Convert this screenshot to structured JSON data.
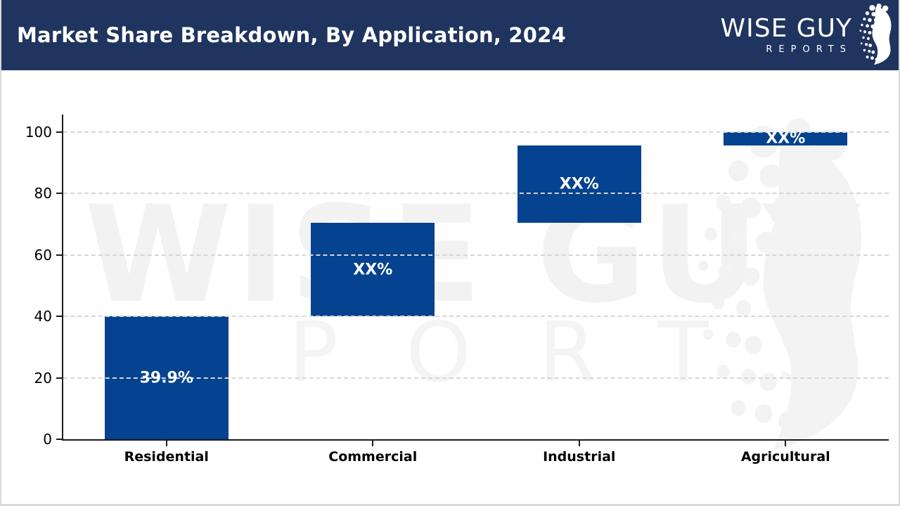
{
  "header": {
    "title": "Market Share Breakdown, By Application, 2024",
    "logo": {
      "brand": "WISE GUY",
      "sub": "REPORTS"
    }
  },
  "watermark": {
    "brand": "WISE GUY",
    "sub": "PORTS"
  },
  "colors": {
    "header_bg": "#1f345f",
    "bar": "#05428f",
    "bar_label_text": "#ffffff",
    "grid": "#d6d6d6",
    "axis": "#1a1a1a",
    "title_text": "#ffffff",
    "watermark": "#f2f2f2"
  },
  "chart_data": {
    "type": "bar",
    "subtype": "floating-waterfall",
    "title": "Market Share Breakdown, By Application, 2024",
    "categories": [
      "Residential",
      "Commercial",
      "Industrial",
      "Agricultural"
    ],
    "segments": [
      {
        "category": "Residential",
        "start": 0,
        "end": 39.9,
        "label": "39.9%"
      },
      {
        "category": "Commercial",
        "start": 39.9,
        "end": 70.5,
        "label": "XX%"
      },
      {
        "category": "Industrial",
        "start": 70.5,
        "end": 95.5,
        "label": "XX%"
      },
      {
        "category": "Agricultural",
        "start": 95.5,
        "end": 100,
        "label": "XX%"
      }
    ],
    "yticks": [
      0,
      20,
      40,
      60,
      80,
      100
    ],
    "ylim": [
      0,
      105
    ],
    "xlabel": "",
    "ylabel": "",
    "grid": "horizontal-dashed",
    "legend": "none"
  }
}
